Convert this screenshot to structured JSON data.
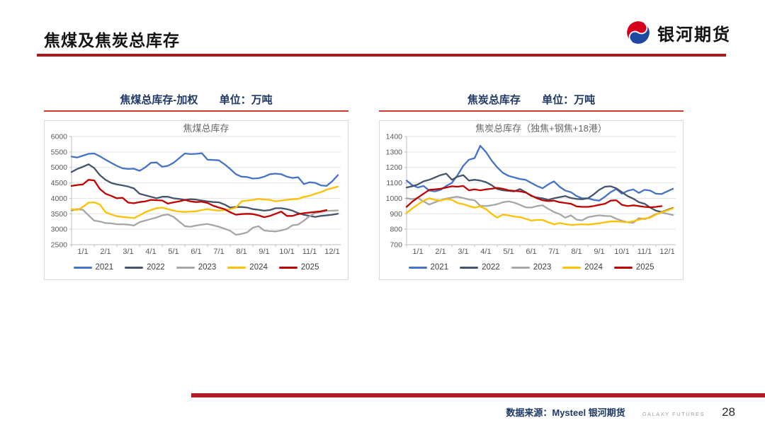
{
  "slide": {
    "title": "焦煤及焦炭总库存",
    "logo_text": "银河期货",
    "footer": {
      "source": "数据来源：Mysteel 银河期货",
      "brand": "GALAXY FUTURES",
      "page": "28"
    }
  },
  "colors": {
    "title_rule": "#9E1F1F",
    "chart_header": "#1F3864",
    "chart_rule": "#D0392F",
    "footer_bar": "#B01E23",
    "grid": "#E2E2E2",
    "axis": "#BFBFBF",
    "logo_red": "#D6001C",
    "logo_blue": "#1F49A0"
  },
  "chart_data": [
    {
      "type": "line",
      "header": "焦煤总库存-加权",
      "unit_label": "单位：万吨",
      "title": "焦煤总库存",
      "ylim": [
        2500,
        6000
      ],
      "ytick_step": 500,
      "x_labels": [
        "1/1",
        "2/1",
        "3/1",
        "4/1",
        "5/1",
        "6/1",
        "7/1",
        "8/1",
        "9/1",
        "10/1",
        "11/1",
        "12/1"
      ],
      "points_per_month": 4,
      "legend_position": "bottom",
      "grid": "horizontal",
      "series": [
        {
          "name": "2021",
          "color": "#4472C4",
          "values": [
            5350,
            5320,
            5380,
            5440,
            5450,
            5360,
            5250,
            5150,
            5050,
            4970,
            4950,
            4960,
            4890,
            5000,
            5150,
            5160,
            5020,
            5050,
            5150,
            5300,
            5450,
            5430,
            5440,
            5460,
            5250,
            5240,
            5230,
            5100,
            4950,
            4780,
            4700,
            4690,
            4640,
            4650,
            4700,
            4780,
            4800,
            4780,
            4700,
            4660,
            4680,
            4460,
            4520,
            4500,
            4420,
            4400,
            4550,
            4750
          ]
        },
        {
          "name": "2022",
          "color": "#44546A",
          "values": [
            4850,
            4950,
            5020,
            5100,
            4980,
            4750,
            4600,
            4500,
            4450,
            4420,
            4380,
            4320,
            4150,
            4100,
            4050,
            4000,
            4050,
            4050,
            4000,
            3980,
            3950,
            3970,
            3960,
            3930,
            3900,
            3880,
            3870,
            3800,
            3700,
            3720,
            3720,
            3700,
            3650,
            3630,
            3600,
            3620,
            3680,
            3680,
            3650,
            3600,
            3520,
            3470,
            3430,
            3400,
            3430,
            3450,
            3470,
            3500
          ]
        },
        {
          "name": "2023",
          "color": "#A6A6A6",
          "values": [
            3600,
            3650,
            3630,
            3450,
            3280,
            3250,
            3200,
            3190,
            3160,
            3160,
            3150,
            3120,
            3230,
            3280,
            3330,
            3380,
            3450,
            3480,
            3400,
            3250,
            3100,
            3080,
            3120,
            3150,
            3170,
            3130,
            3080,
            3020,
            2950,
            2820,
            2850,
            2900,
            3050,
            3100,
            2960,
            2940,
            2930,
            2960,
            3010,
            3130,
            3150,
            3280,
            3420,
            3530,
            3560,
            3590,
            3600,
            3610
          ]
        },
        {
          "name": "2024",
          "color": "#FFC000",
          "values": [
            3650,
            3620,
            3720,
            3860,
            3870,
            3800,
            3550,
            3480,
            3420,
            3400,
            3380,
            3360,
            3450,
            3550,
            3620,
            3680,
            3700,
            3650,
            3600,
            3570,
            3560,
            3570,
            3580,
            3620,
            3650,
            3620,
            3600,
            3620,
            3650,
            3700,
            3900,
            3930,
            3950,
            3980,
            3960,
            3950,
            3900,
            3930,
            3950,
            3970,
            3980,
            4050,
            4080,
            4150,
            4200,
            4280,
            4330,
            4380
          ]
        },
        {
          "name": "2025",
          "color": "#C00000",
          "values": [
            4400,
            4430,
            4450,
            4600,
            4580,
            4300,
            4150,
            4080,
            4000,
            4020,
            3860,
            3840,
            3880,
            3900,
            3950,
            3940,
            3930,
            3830,
            3870,
            3900,
            3950,
            3900,
            3880,
            3890,
            3850,
            3760,
            3700,
            3650,
            3550,
            3470,
            3490,
            3500,
            3490,
            3450,
            3390,
            3430,
            3500,
            3570,
            3430,
            3430,
            3490,
            3520,
            3540,
            3560,
            3580,
            3620,
            null,
            null
          ]
        }
      ]
    },
    {
      "type": "line",
      "header": "焦炭总库存",
      "unit_label": "单位：万吨",
      "title": "焦炭总库存（独焦+钢焦+18港）",
      "ylim": [
        700,
        1400
      ],
      "ytick_step": 100,
      "x_labels": [
        "1/1",
        "2/1",
        "3/1",
        "4/1",
        "5/1",
        "6/1",
        "7/1",
        "8/1",
        "9/1",
        "10/1",
        "11/1",
        "12/1"
      ],
      "points_per_month": 4,
      "legend_position": "bottom",
      "grid": "horizontal",
      "series": [
        {
          "name": "2021",
          "color": "#4472C4",
          "values": [
            1115,
            1085,
            1070,
            1080,
            1050,
            1045,
            1055,
            1080,
            1100,
            1150,
            1210,
            1250,
            1260,
            1340,
            1300,
            1245,
            1200,
            1165,
            1145,
            1135,
            1125,
            1120,
            1100,
            1080,
            1065,
            1090,
            1110,
            1075,
            1050,
            1040,
            1015,
            1000,
            1000,
            990,
            985,
            1010,
            1040,
            1060,
            1030,
            1048,
            1058,
            1035,
            1055,
            1050,
            1030,
            1028,
            1045,
            1062
          ]
        },
        {
          "name": "2022",
          "color": "#44546A",
          "values": [
            1070,
            1078,
            1090,
            1110,
            1120,
            1135,
            1150,
            1160,
            1120,
            1140,
            1150,
            1115,
            1120,
            1115,
            1105,
            1085,
            1060,
            1052,
            1048,
            1045,
            1060,
            1040,
            1015,
            1005,
            1000,
            990,
            1000,
            1008,
            1015,
            1002,
            996,
            994,
            1000,
            1025,
            1055,
            1075,
            1078,
            1065,
            1040,
            1015,
            998,
            975,
            965,
            940,
            920,
            912,
            925,
            938
          ]
        },
        {
          "name": "2023",
          "color": "#A6A6A6",
          "values": [
            1000,
            995,
            1002,
            980,
            960,
            975,
            988,
            998,
            1005,
            1010,
            1002,
            992,
            988,
            952,
            950,
            955,
            962,
            975,
            980,
            972,
            958,
            942,
            940,
            950,
            955,
            932,
            912,
            898,
            875,
            890,
            862,
            858,
            878,
            885,
            890,
            886,
            885,
            868,
            855,
            845,
            842,
            872,
            865,
            880,
            898,
            908,
            900,
            892
          ]
        },
        {
          "name": "2024",
          "color": "#FFC000",
          "values": [
            905,
            935,
            960,
            985,
            1000,
            990,
            985,
            995,
            990,
            970,
            962,
            950,
            940,
            948,
            930,
            900,
            875,
            895,
            890,
            882,
            878,
            868,
            856,
            860,
            860,
            845,
            832,
            840,
            833,
            828,
            830,
            832,
            830,
            834,
            838,
            845,
            850,
            852,
            848,
            845,
            852,
            862,
            870,
            875,
            895,
            910,
            922,
            935
          ]
        },
        {
          "name": "2025",
          "color": "#C00000",
          "values": [
            945,
            978,
            1005,
            1030,
            1055,
            1058,
            1062,
            1070,
            1078,
            1075,
            1080,
            1052,
            1058,
            1052,
            1058,
            1062,
            1068,
            1062,
            1052,
            1048,
            1045,
            1038,
            1018,
            1000,
            988,
            982,
            985,
            975,
            970,
            965,
            948,
            945,
            945,
            950,
            958,
            965,
            985,
            988,
            958,
            950,
            955,
            950,
            945,
            942,
            945,
            950,
            null,
            null
          ]
        }
      ]
    }
  ]
}
